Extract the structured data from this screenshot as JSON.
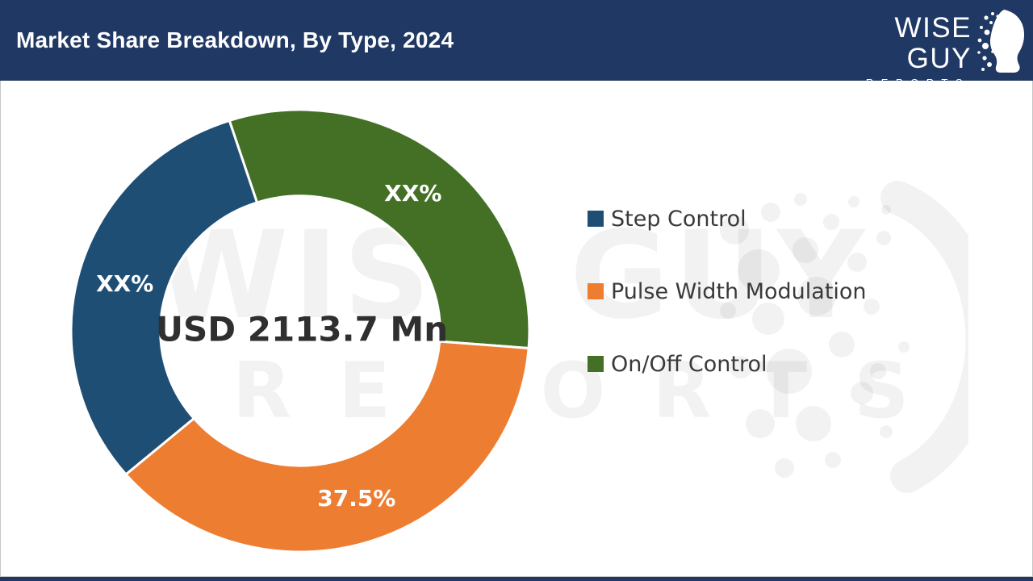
{
  "header": {
    "title": "Market Share Breakdown, By Type, 2024",
    "logo": {
      "line1": "WISE GUY",
      "line2": "REPORTS"
    },
    "bg_color": "#203864"
  },
  "watermark": {
    "line1": "WISE GUY",
    "line2": "REPORTS"
  },
  "chart_data": {
    "type": "pie",
    "subtype": "donut",
    "title": "Market Share Breakdown, By Type, 2024",
    "center_label": "USD 2113.7 Mn",
    "start_angle_deg": -18,
    "donut_hole_ratio": 0.61,
    "grid": false,
    "legend_position": "right",
    "segments": [
      {
        "name": "On/Off Control",
        "display_label": "XX%",
        "value_pct": 31.25,
        "color": "#447026"
      },
      {
        "name": "Pulse Width Modulation",
        "display_label": "37.5%",
        "value_pct": 37.5,
        "color": "#ED7D31"
      },
      {
        "name": "Step Control",
        "display_label": "XX%",
        "value_pct": 31.25,
        "color": "#1F4E74"
      }
    ],
    "legend": [
      {
        "label": "Step Control",
        "color": "#1F4E74"
      },
      {
        "label": "Pulse Width Modulation",
        "color": "#ED7D31"
      },
      {
        "label": "On/Off Control",
        "color": "#447026"
      }
    ]
  }
}
